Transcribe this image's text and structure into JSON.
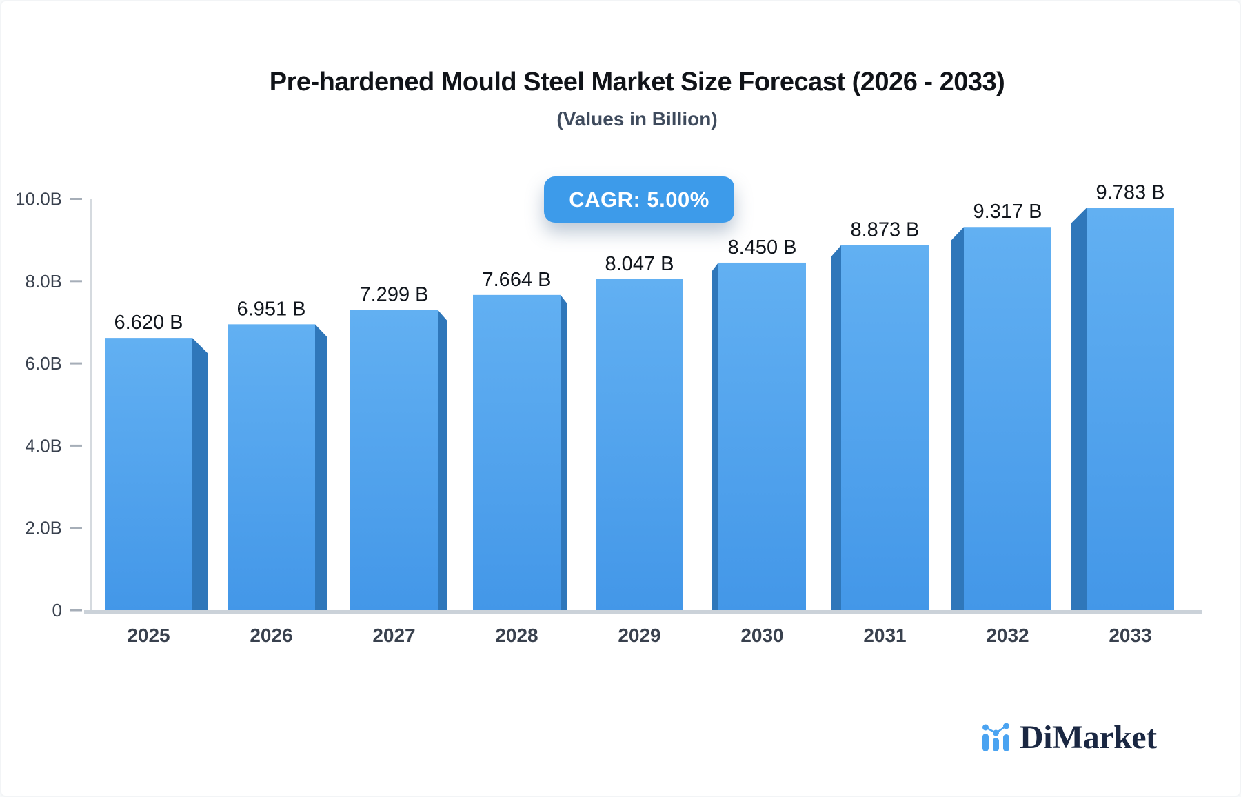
{
  "title": "Pre-hardened Mould Steel Market Size Forecast (2026 - 2033)",
  "subtitle": "(Values in Billion)",
  "cagr_badge_label": "CAGR: 5.00%",
  "brand": {
    "name": "DiMarket",
    "icon": "bar-line-chart-icon"
  },
  "colors": {
    "accent_blue": "#3d9bea",
    "bar_face_top": "#62b0f2",
    "bar_face_bottom": "#4397e8",
    "bar_side": "#2f77ba",
    "value_label_text": "#10151c",
    "axis_text": "#39414e",
    "tick_dash": "#a6aeb8",
    "y_axis_line": "#d5dadf",
    "x_axis_line": "#cbd2d9",
    "brand_blue": "#4aa3f1",
    "brand_navy": "#1a2742",
    "badge_text": "#ffffff"
  },
  "chart_data": {
    "type": "bar",
    "style": "3d-perspective-bars",
    "title": "Pre-hardened Mould Steel Market Size Forecast (2026 - 2033)",
    "subtitle": "(Values in Billion)",
    "annotation": "CAGR: 5.00%",
    "categories": [
      "2025",
      "2026",
      "2027",
      "2028",
      "2029",
      "2030",
      "2031",
      "2032",
      "2033"
    ],
    "values": [
      6.62,
      6.951,
      7.299,
      7.664,
      8.047,
      8.45,
      8.873,
      9.317,
      9.783
    ],
    "value_labels": [
      "6.620 B",
      "6.951 B",
      "7.299 B",
      "7.664 B",
      "8.047 B",
      "8.450 B",
      "8.873 B",
      "9.317 B",
      "9.783 B"
    ],
    "xlabel": "",
    "ylabel": "",
    "ylim": [
      0,
      10
    ],
    "y_tick_values": [
      0,
      2,
      4,
      6,
      8,
      10
    ],
    "y_tick_labels": [
      "0",
      "2.0B",
      "4.0B",
      "6.0B",
      "8.0B",
      "10.0B"
    ],
    "grid": false,
    "legend": "none"
  }
}
